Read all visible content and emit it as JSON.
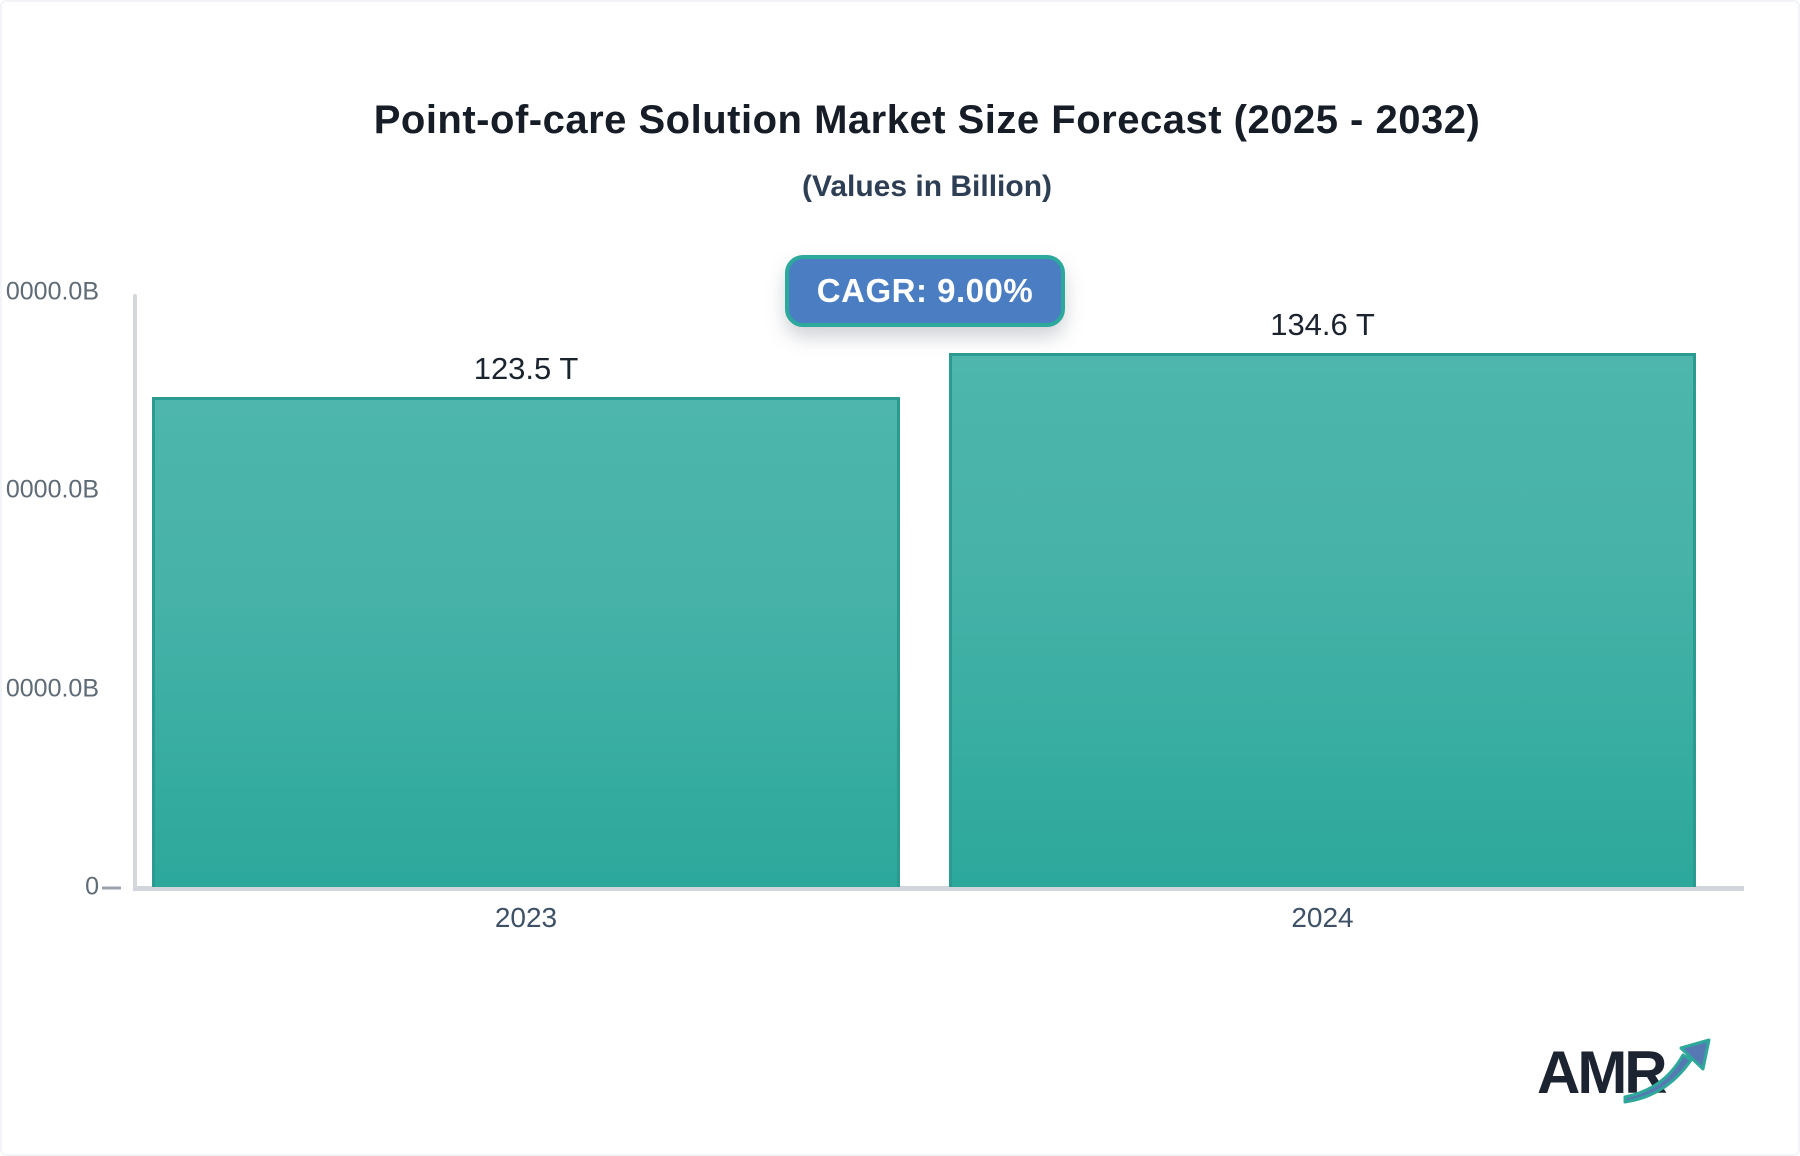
{
  "header": {
    "title": "Point-of-care Solution Market Size Forecast (2025 - 2032)",
    "subtitle": "(Values in Billion)",
    "cagr_badge_label": "CAGR: 9.00%"
  },
  "chart_data": {
    "type": "bar",
    "title": "Point-of-care Solution Market Size Forecast (2025 - 2032)",
    "subtitle": "(Values in Billion)",
    "categories": [
      "2023",
      "2024"
    ],
    "values_T": [
      123.5,
      134.6
    ],
    "values_B": [
      123500,
      134600
    ],
    "value_labels": [
      "123.5 T",
      "134.6 T"
    ],
    "cagr_percent": "9.00%",
    "y_axis": {
      "unit": "Billion",
      "ylim_B": [
        0,
        150000
      ],
      "tick_labels_visible": [
        "0000.0B",
        "0000.0B",
        "0000.0B",
        "0"
      ]
    },
    "grid": false,
    "legend": false
  },
  "colors": {
    "bar_fill_top": "#4eb6ac",
    "bar_fill_bottom": "#2ca89b",
    "bar_border": "#2b9a90",
    "badge_fill": "#4b7dc3",
    "badge_border": "#2ca89c",
    "badge_text": "#ffffff",
    "axis_line": "#d3d6dc",
    "tick_text": "#5f6b76",
    "category_text": "#3f5166",
    "value_text": "#1a232e",
    "title_text": "#161d27",
    "logo_text": "#1b2430",
    "logo_arrow_fill": "#5679b4",
    "logo_arrow_outline": "#2ea89a"
  },
  "logo": {
    "text": "AMR"
  }
}
